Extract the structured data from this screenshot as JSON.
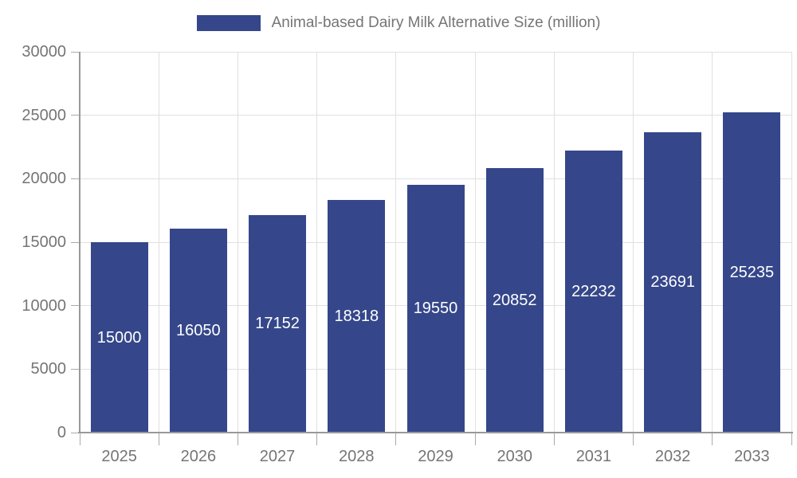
{
  "chart_data": {
    "type": "bar",
    "title": "Animal-based Dairy Milk Alternative Size (million)",
    "categories": [
      "2025",
      "2026",
      "2027",
      "2028",
      "2029",
      "2030",
      "2031",
      "2032",
      "2033"
    ],
    "values": [
      15000,
      16050,
      17152,
      18318,
      19550,
      20852,
      22232,
      23691,
      25235
    ],
    "xlabel": "",
    "ylabel": "",
    "ylim": [
      0,
      30000
    ],
    "yticks": [
      0,
      5000,
      10000,
      15000,
      20000,
      25000,
      30000
    ],
    "grid": true,
    "legend_position": "top-center",
    "value_labels": "centered-inside-bars-white"
  },
  "colors": {
    "bar": "#35478a",
    "grid": "#e0e0e0",
    "axis": "#999999",
    "tick": "#aaaaaa",
    "text": "#757575",
    "value_label": "#ffffff",
    "background": "#ffffff"
  }
}
